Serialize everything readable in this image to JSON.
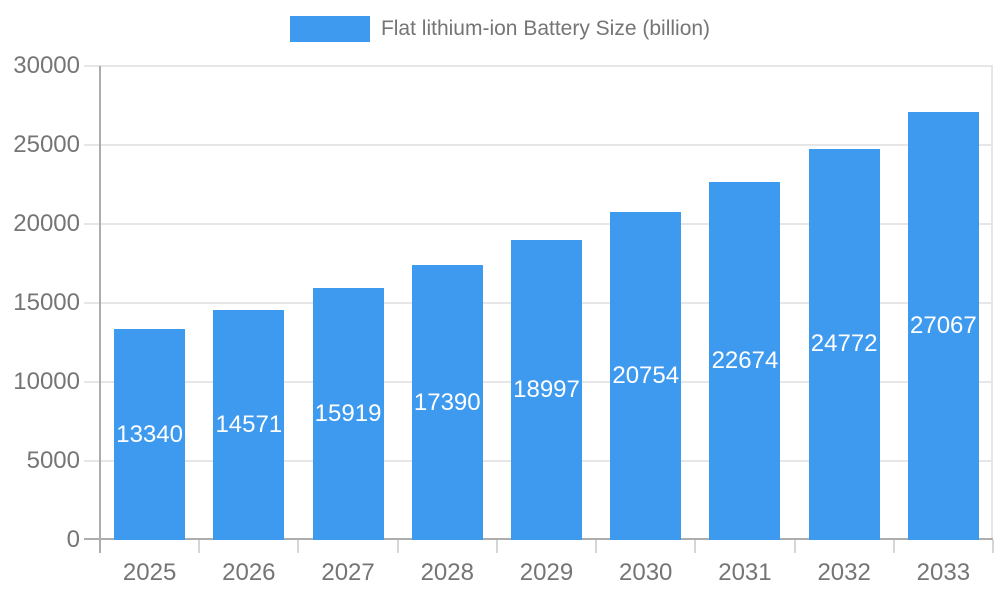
{
  "chart_data": {
    "type": "bar",
    "title": "Flat lithium-ion Battery Size (billion)",
    "categories": [
      "2025",
      "2026",
      "2027",
      "2028",
      "2029",
      "2030",
      "2031",
      "2032",
      "2033"
    ],
    "series": [
      {
        "name": "Flat lithium-ion Battery Size (billion)",
        "values": [
          13340,
          14571,
          15919,
          17390,
          18997,
          20754,
          22674,
          24772,
          27067
        ]
      }
    ],
    "xlabel": "",
    "ylabel": "",
    "ylim": [
      0,
      30000
    ],
    "yticks": [
      0,
      5000,
      10000,
      15000,
      20000,
      25000,
      30000
    ],
    "grid": "horizontal",
    "legend_position": "top",
    "bar_color": "#3E9AEF",
    "bar_label_color": "#FFFFFF",
    "axis_text_color": "#757575",
    "gridline_color": "#E6E6E6",
    "tick_color": "#D6D6D6",
    "axis_line_color": "#ADADAD",
    "background_color": "#FFFFFF"
  }
}
